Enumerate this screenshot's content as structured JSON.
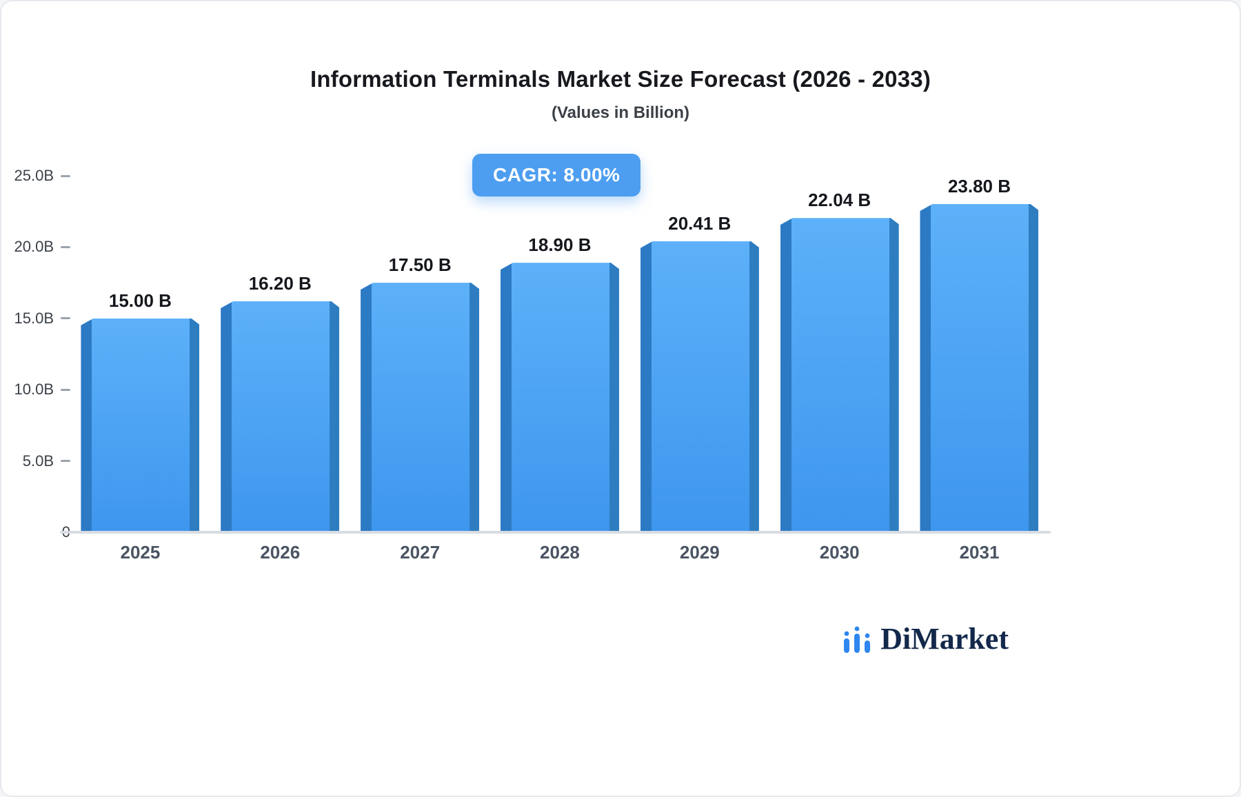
{
  "header": {
    "subtitle": "(Values in Billion)"
  },
  "badge": {
    "label": "CAGR: 8.00%",
    "color": "#4d9ef0"
  },
  "chart_data": {
    "type": "bar",
    "title": "Information Terminals Market Size Forecast (2026 - 2033)",
    "subtitle": "(Values in Billion)",
    "categories": [
      "2025",
      "2026",
      "2027",
      "2028",
      "2029",
      "2030",
      "2031"
    ],
    "values": [
      15.0,
      16.2,
      17.5,
      18.9,
      20.41,
      22.04,
      23.8
    ],
    "value_labels": [
      "15.00 B",
      "16.20 B",
      "17.50 B",
      "18.90 B",
      "20.41 B",
      "22.04 B",
      "23.80 B"
    ],
    "xlabel": "",
    "ylabel": "",
    "ylim": [
      0,
      25
    ],
    "yticks": [
      {
        "value": 25,
        "label": "25.0B"
      },
      {
        "value": 20,
        "label": "20.0B"
      },
      {
        "value": 15,
        "label": "15.0B"
      },
      {
        "value": 10,
        "label": "10.0B"
      },
      {
        "value": 5,
        "label": "5.0B"
      },
      {
        "value": 0,
        "label": "0"
      }
    ],
    "grid": false,
    "legend": "none",
    "bar_color_main": "#4aa2f3",
    "bar_color_edge": "#2d7ac4",
    "cagr": "CAGR: 8.00%"
  },
  "footer": {
    "brand": "DiMarket",
    "brand_color": "#13294b",
    "icon_color": "#2e86f0"
  }
}
